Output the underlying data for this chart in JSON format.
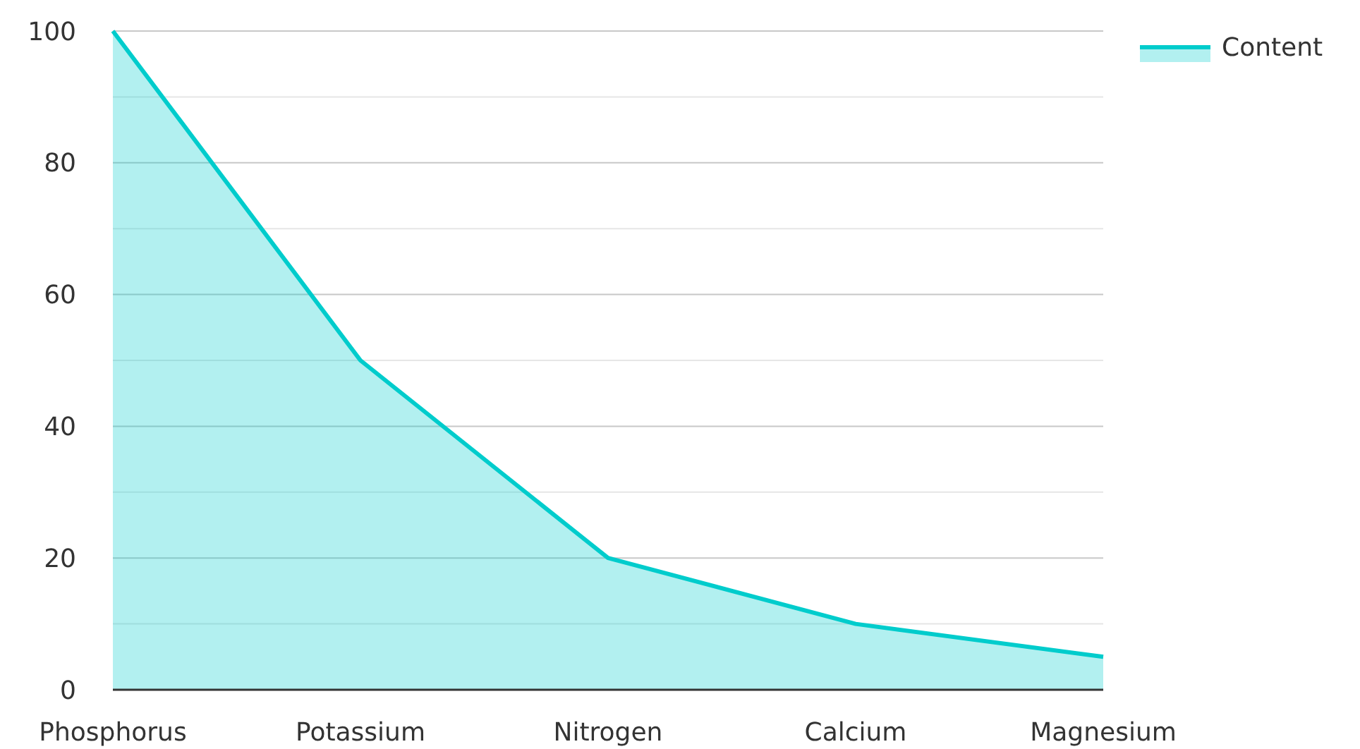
{
  "chart_data": {
    "type": "area",
    "categories": [
      "Phosphorus",
      "Potassium",
      "Nitrogen",
      "Calcium",
      "Magnesium"
    ],
    "series": [
      {
        "name": "Content",
        "color": "#00cccc",
        "values": [
          100,
          50,
          20,
          10,
          5
        ]
      }
    ],
    "ylim": [
      0,
      100
    ],
    "yticks": [
      0,
      {
        "value": 10,
        "label": null
      },
      20,
      {
        "value": 30,
        "label": null
      },
      40,
      {
        "value": 50,
        "label": null
      },
      60,
      {
        "value": 70,
        "label": null
      },
      80,
      {
        "value": 90,
        "label": null
      },
      100
    ],
    "grid": true,
    "legend": "top right"
  }
}
